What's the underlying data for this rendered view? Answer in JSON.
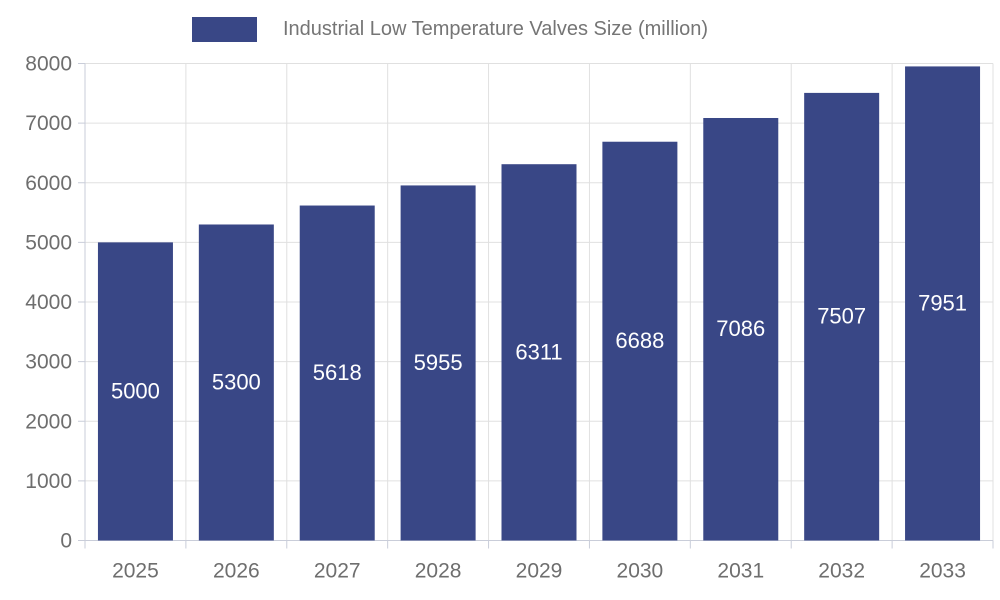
{
  "legend": {
    "label": "Industrial Low Temperature Valves Size (million)"
  },
  "chart_data": {
    "type": "bar",
    "title": "Industrial Low Temperature Valves Size (million)",
    "categories": [
      "2025",
      "2026",
      "2027",
      "2028",
      "2029",
      "2030",
      "2031",
      "2032",
      "2033"
    ],
    "values": [
      5000,
      5300,
      5618,
      5955,
      6311,
      6688,
      7086,
      7507,
      7951
    ],
    "xlabel": "",
    "ylabel": "",
    "ylim": [
      0,
      8000
    ],
    "ytick_step": 1000,
    "ytick_labels": [
      "0",
      "1000",
      "2000",
      "3000",
      "4000",
      "5000",
      "6000",
      "7000",
      "8000"
    ],
    "grid": true,
    "legend_position": "top",
    "value_labels": "inside-center",
    "colors": {
      "bar": "#394786",
      "value_label": "#ffffff",
      "axis_text": "#6e6e6e",
      "grid_line": "#e0e0e0",
      "axis_line": "#c9cdd9",
      "legend_text": "#757575",
      "background": "#ffffff"
    }
  }
}
